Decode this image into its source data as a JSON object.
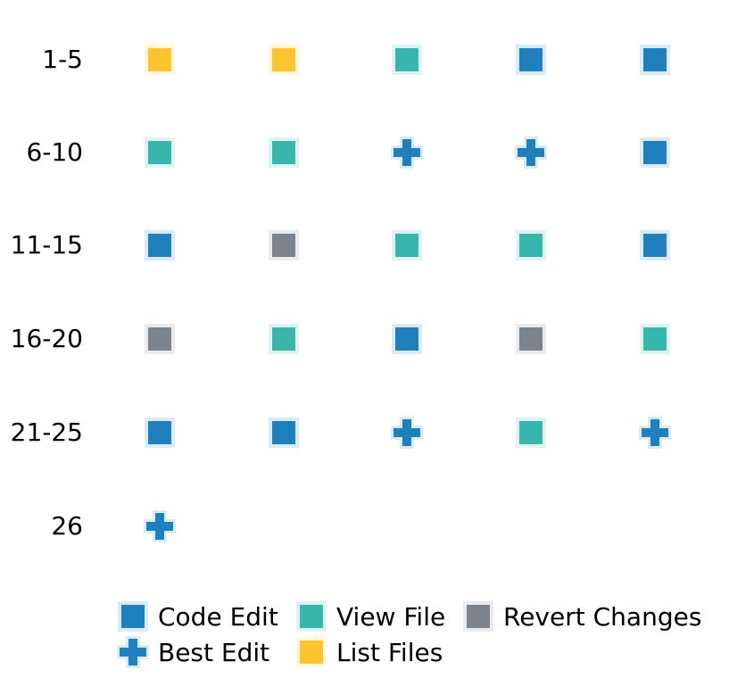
{
  "figure": {
    "background": "#ffffff"
  },
  "chart_data": {
    "type": "scatter",
    "title": "",
    "xlabel": "",
    "ylabel": "",
    "grid": false,
    "legend_position": "bottom",
    "row_labels": [
      "1-5",
      "6-10",
      "11-15",
      "16-20",
      "21-25",
      "26"
    ],
    "columns_per_row": 5,
    "rows": [
      {
        "label": "1-5",
        "markers": [
          "List Files",
          "List Files",
          "View File",
          "Code Edit",
          "Code Edit"
        ]
      },
      {
        "label": "6-10",
        "markers": [
          "View File",
          "View File",
          "Best Edit",
          "Best Edit",
          "Code Edit"
        ]
      },
      {
        "label": "11-15",
        "markers": [
          "Code Edit",
          "Revert Changes",
          "View File",
          "View File",
          "Code Edit"
        ]
      },
      {
        "label": "16-20",
        "markers": [
          "Revert Changes",
          "View File",
          "Code Edit",
          "Revert Changes",
          "View File"
        ]
      },
      {
        "label": "21-25",
        "markers": [
          "Code Edit",
          "Code Edit",
          "Best Edit",
          "View File",
          "Best Edit"
        ]
      },
      {
        "label": "26",
        "markers": [
          "Best Edit"
        ]
      }
    ],
    "marker_styles": {
      "Code Edit": {
        "shape": "square",
        "color": "#1e81bd"
      },
      "View File": {
        "shape": "square",
        "color": "#37b6ad"
      },
      "Revert Changes": {
        "shape": "square",
        "color": "#7b838c"
      },
      "Best Edit": {
        "shape": "plus",
        "color": "#1e81bd"
      },
      "List Files": {
        "shape": "square",
        "color": "#fdc430"
      }
    },
    "legend": [
      {
        "label": "Code Edit",
        "shape": "square",
        "color": "#1e81bd"
      },
      {
        "label": "View File",
        "shape": "square",
        "color": "#37b6ad"
      },
      {
        "label": "Revert Changes",
        "shape": "square",
        "color": "#7b838c"
      },
      {
        "label": "Best Edit",
        "shape": "plus",
        "color": "#1e81bd"
      },
      {
        "label": "List Files",
        "shape": "square",
        "color": "#fdc430"
      }
    ]
  }
}
